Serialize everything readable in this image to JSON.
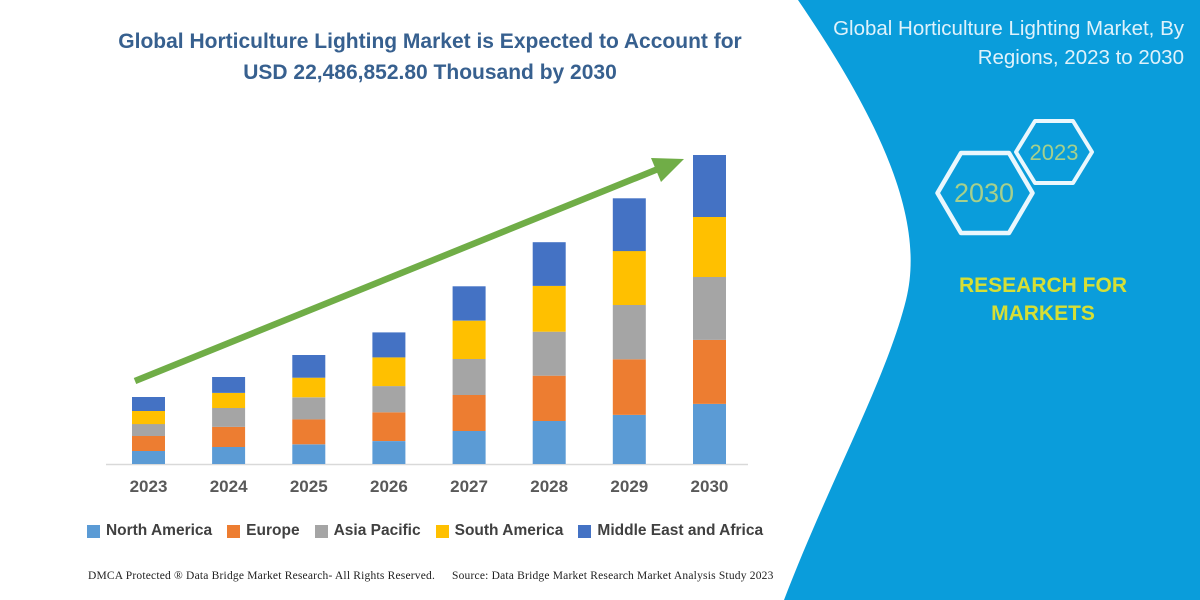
{
  "left_section": {
    "title_line1": "Global Horticulture Lighting Market is Expected to Account for",
    "title_line2": "USD 22,486,852.80 Thousand by 2030",
    "title_color": "#37608F",
    "footer_left": "DMCA Protected ® Data Bridge Market Research-  All Rights Reserved.",
    "footer_right": "Source: Data Bridge Market Research  Market Analysis Study 2023"
  },
  "chart_data": {
    "type": "bar",
    "stacked": true,
    "title": "Global Horticulture Lighting Market is Expected to Account for USD 22,486,852.80 Thousand by 2030",
    "units": "USD Thousand",
    "categories": [
      "2023",
      "2024",
      "2025",
      "2026",
      "2027",
      "2028",
      "2029",
      "2030"
    ],
    "series": [
      {
        "name": "North America",
        "color": "#5B9BD5",
        "values": [
          950000,
          1240000,
          1430000,
          1670000,
          2400000,
          3130000,
          3570000,
          4370000
        ]
      },
      {
        "name": "Europe",
        "color": "#ED7D31",
        "values": [
          1090000,
          1460000,
          1820000,
          2090000,
          2620000,
          3300000,
          4050000,
          4660000
        ]
      },
      {
        "name": "Asia Pacific",
        "color": "#A5A5A5",
        "values": [
          870000,
          1380000,
          1600000,
          1910000,
          2620000,
          3200000,
          3950000,
          4580000
        ]
      },
      {
        "name": "South America",
        "color": "#FFC000",
        "values": [
          950000,
          1090000,
          1430000,
          2090000,
          2790000,
          3330000,
          3930000,
          4370000
        ]
      },
      {
        "name": "Middle East and Africa",
        "color": "#4472C4",
        "values": [
          1020000,
          1160000,
          1650000,
          1820000,
          2500000,
          3180000,
          3840000,
          4510000
        ]
      }
    ],
    "total_2030": "22,486,852.80",
    "legend_position": "bottom",
    "grid": false,
    "trend_arrow": true,
    "trend_arrow_color": "#70AD47",
    "axis_line_color": "#D9D9D9",
    "tick_label_color": "#595959",
    "legend_text_color": "#404040"
  },
  "right_panel": {
    "background": "#0A9DDB",
    "title": "Global Horticulture Lighting Market, By Regions, 2023 to 2030",
    "title_color": "#DFF2FB",
    "hexagons": [
      {
        "label": "2030"
      },
      {
        "label": "2023"
      }
    ],
    "hexagon_border_color": "#EAF7FD",
    "hexagon_text_color": "#A6D08C",
    "brand_text": "RESEARCH FOR MARKETS",
    "brand_color": "#D6DF35"
  }
}
